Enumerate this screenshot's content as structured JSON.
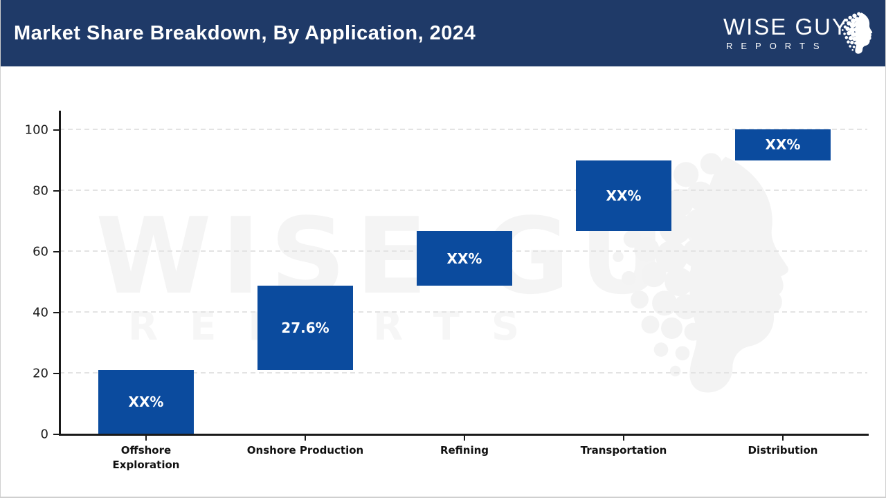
{
  "header": {
    "title": "Market Share Breakdown, By Application, 2024",
    "background": "#1F3A68",
    "logo": {
      "line1": "WISE GUY",
      "line2": "REPORTS"
    }
  },
  "watermark": {
    "line1": "WISE GUY",
    "line2": "REPORTS"
  },
  "chart_data": {
    "type": "bar",
    "subtype": "waterfall",
    "title": "Market Share Breakdown, By Application, 2024",
    "categories": [
      "Offshore\nExploration",
      "Onshore Production",
      "Refining",
      "Transportation",
      "Distribution"
    ],
    "segments": [
      {
        "category": "Offshore Exploration",
        "start": 0,
        "end": 21,
        "label": "XX%"
      },
      {
        "category": "Onshore Production",
        "start": 21,
        "end": 48.6,
        "label": "27.6%"
      },
      {
        "category": "Refining",
        "start": 48.6,
        "end": 66.6,
        "label": "XX%"
      },
      {
        "category": "Transportation",
        "start": 66.6,
        "end": 89.8,
        "label": "XX%"
      },
      {
        "category": "Distribution",
        "start": 89.8,
        "end": 100,
        "label": "XX%"
      }
    ],
    "xlabel": "",
    "ylabel": "",
    "ylim": [
      0,
      107
    ],
    "yticks": [
      0,
      20,
      40,
      60,
      80,
      100
    ],
    "grid": true,
    "legend": false,
    "bar_color": "#0B4B9E",
    "bar_label_color": "#FFFFFF"
  }
}
